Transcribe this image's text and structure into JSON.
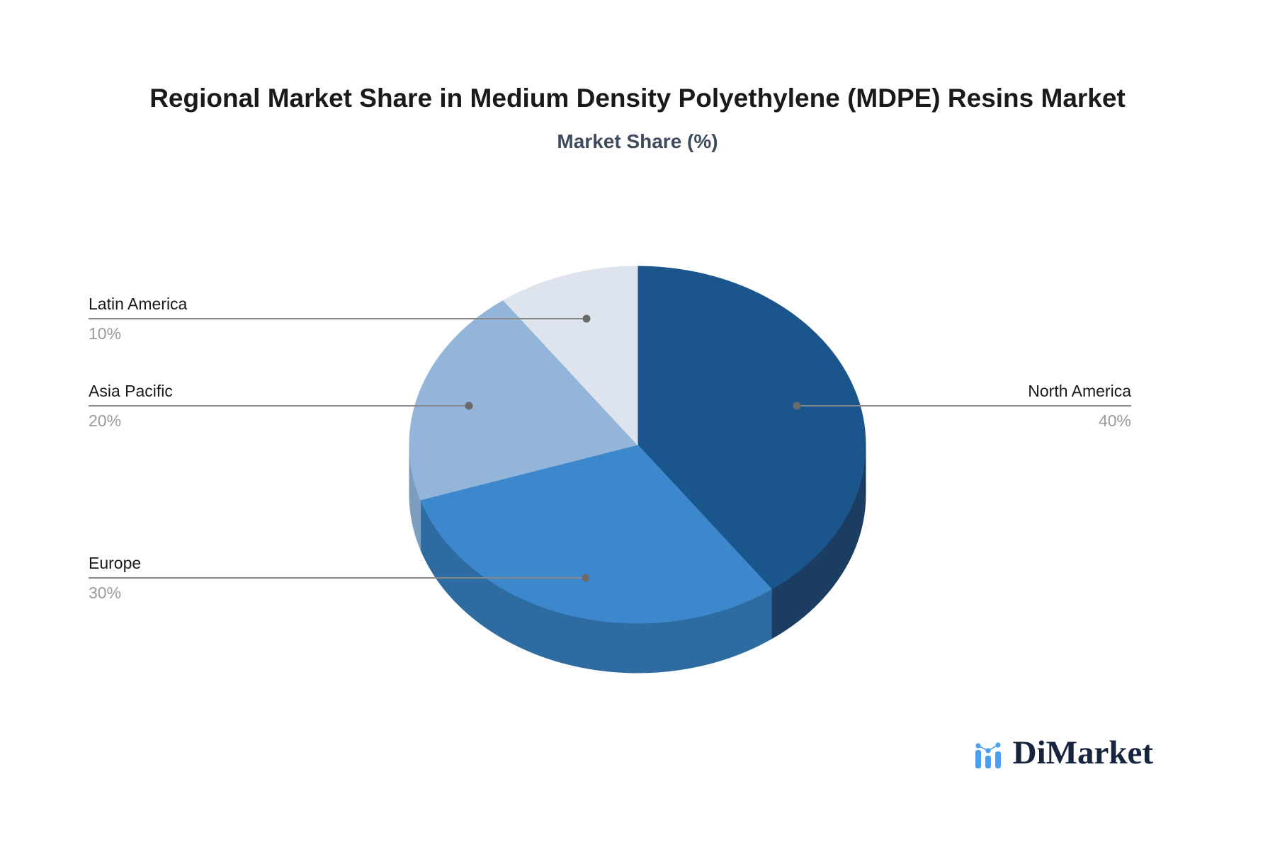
{
  "title": "Regional Market Share in Medium Density Polyethylene (MDPE) Resins Market",
  "subtitle": "Market Share (%)",
  "chart_data": {
    "type": "pie",
    "title": "Regional Market Share in Medium Density Polyethylene (MDPE) Resins Market",
    "subtitle": "Market Share (%)",
    "unit": "%",
    "effect": "3d",
    "start_angle_deg": 0,
    "direction": "clockwise",
    "labels": [
      "North America",
      "Europe",
      "Asia Pacific",
      "Latin America"
    ],
    "values": [
      40,
      30,
      20,
      10
    ],
    "colors": [
      "#1a568c",
      "#3d88cc",
      "#93b5d9",
      "#dde4ee"
    ],
    "side_colors": [
      "#1b3d61",
      "#2e6ba0",
      "#7e9cbd",
      "#c9d2de"
    ],
    "legend_position": "callout-lines"
  },
  "callouts": [
    {
      "label": "North America",
      "percent": "40%"
    },
    {
      "label": "Europe",
      "percent": "30%"
    },
    {
      "label": "Asia Pacific",
      "percent": "20%"
    },
    {
      "label": "Latin America",
      "percent": "10%"
    }
  ],
  "style": {
    "leader_line_color": "#888888",
    "leader_dot_color": "#6a6a6a",
    "logo_accent_color": "#4aa0f0",
    "logo_text_color": "#17243d"
  },
  "logo": {
    "text": "DiMarket"
  }
}
